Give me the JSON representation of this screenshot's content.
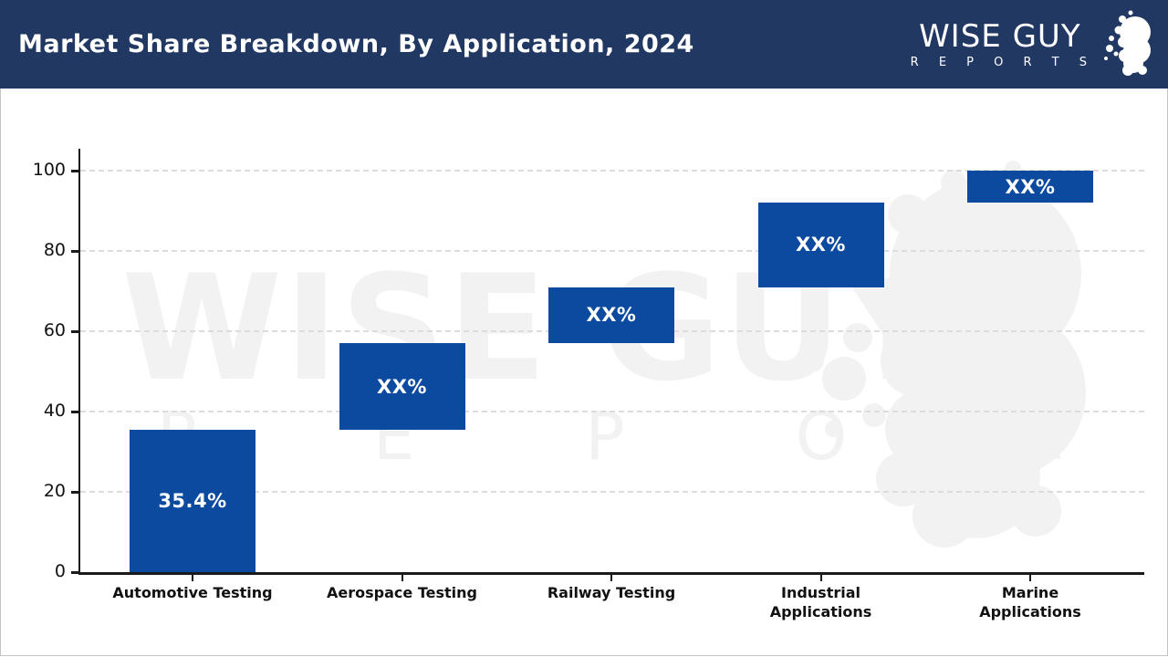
{
  "header": {
    "title": "Market Share Breakdown, By Application, 2024",
    "logo": {
      "line1": "WISE GUY",
      "line2": "R E P O R T S"
    }
  },
  "watermark": {
    "line1": "WISE GUY",
    "line2": "R E P O R T S"
  },
  "colors": {
    "header_bg": "#213863",
    "bar": "#0b4a9e",
    "grid": "#dcdcdc",
    "axis": "#1a1a1a",
    "watermark": "#f2f2f2",
    "card_border": "#c4c4c4"
  },
  "chart_data": {
    "type": "bar",
    "subtype": "waterfall",
    "title": "Market Share Breakdown, By Application, 2024",
    "categories": [
      "Automotive Testing",
      "Aerospace Testing",
      "Railway Testing",
      "Industrial Applications",
      "Marine Applications"
    ],
    "category_label_lines": [
      [
        "Automotive Testing"
      ],
      [
        "Aerospace Testing"
      ],
      [
        "Railway Testing"
      ],
      [
        "Industrial",
        "Applications"
      ],
      [
        "Marine",
        "Applications"
      ]
    ],
    "bars": [
      {
        "category": "Automotive Testing",
        "start": 0,
        "end": 35.4,
        "label": "35.4%"
      },
      {
        "category": "Aerospace Testing",
        "start": 35.4,
        "end": 57,
        "label": "XX%"
      },
      {
        "category": "Railway Testing",
        "start": 57,
        "end": 71,
        "label": "XX%"
      },
      {
        "category": "Industrial Applications",
        "start": 71,
        "end": 92,
        "label": "XX%"
      },
      {
        "category": "Marine Applications",
        "start": 92,
        "end": 100,
        "label": "XX%"
      }
    ],
    "yticks": [
      0,
      20,
      40,
      60,
      80,
      100
    ],
    "ylim": [
      0,
      105.5
    ],
    "xlabel": "",
    "ylabel": "",
    "grid": "horizontal-dashed",
    "legend": "none",
    "bar_color": "#0b4a9e"
  }
}
